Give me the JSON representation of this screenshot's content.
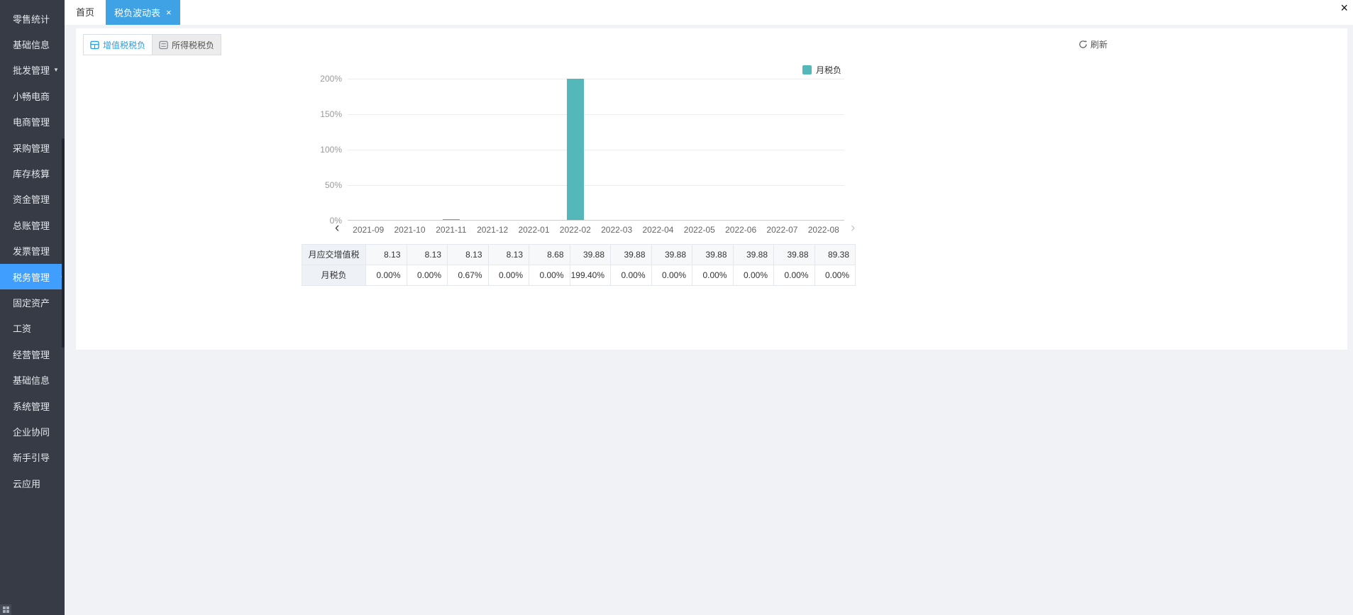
{
  "sidebar": {
    "items": [
      {
        "label": "零售统计"
      },
      {
        "label": "基础信息"
      },
      {
        "label": "批发管理",
        "caret": true
      },
      {
        "label": "小畅电商"
      },
      {
        "label": "电商管理"
      },
      {
        "label": "采购管理"
      },
      {
        "label": "库存核算"
      },
      {
        "label": "资金管理"
      },
      {
        "label": "总账管理"
      },
      {
        "label": "发票管理"
      },
      {
        "label": "税务管理",
        "active": true
      },
      {
        "label": "固定资产"
      },
      {
        "label": "工资"
      },
      {
        "label": "经营管理"
      },
      {
        "label": "基础信息"
      },
      {
        "label": "系统管理"
      },
      {
        "label": "企业协同"
      },
      {
        "label": "新手引导"
      },
      {
        "label": "云应用"
      }
    ]
  },
  "tabbar": {
    "home_tab": "首页",
    "active_tab": "税负波动表",
    "close_glyph": "×",
    "window_close": "×"
  },
  "content": {
    "tabs": [
      {
        "label": "增值税税负",
        "active": true
      },
      {
        "label": "所得税税负",
        "active": false
      }
    ],
    "refresh_label": "刷新"
  },
  "chart_data": {
    "type": "bar",
    "title": "",
    "legend": [
      "月税负"
    ],
    "legend_position": "top-right",
    "categories": [
      "2021-09",
      "2021-10",
      "2021-11",
      "2021-12",
      "2022-01",
      "2022-02",
      "2022-03",
      "2022-04",
      "2022-05",
      "2022-06",
      "2022-07",
      "2022-08"
    ],
    "series": [
      {
        "name": "月税负",
        "values": [
          0,
          0,
          0.67,
          0,
          0,
          199.4,
          0,
          0,
          0,
          0,
          0,
          0
        ]
      }
    ],
    "yticks": [
      "0%",
      "50%",
      "100%",
      "150%",
      "200%"
    ],
    "ylim": [
      0,
      200
    ],
    "grid": true,
    "bar_color": "#54b8ba",
    "pager": {
      "prev": "‹",
      "next": "›"
    }
  },
  "table": {
    "rows": [
      {
        "label": "月应交增值税",
        "values": [
          "8.13",
          "8.13",
          "8.13",
          "8.13",
          "8.68",
          "39.88",
          "39.88",
          "39.88",
          "39.88",
          "39.88",
          "39.88",
          "89.38"
        ]
      },
      {
        "label": "月税负",
        "values": [
          "0.00%",
          "0.00%",
          "0.67%",
          "0.00%",
          "0.00%",
          "199.40%",
          "0.00%",
          "0.00%",
          "0.00%",
          "0.00%",
          "0.00%",
          "0.00%"
        ]
      }
    ]
  },
  "colors": {
    "sidebar_bg": "#363b46",
    "sidebar_active": "#409eff",
    "tab_active": "#3ea2e5",
    "bar": "#54b8ba",
    "page_bg": "#f0f2f5"
  }
}
